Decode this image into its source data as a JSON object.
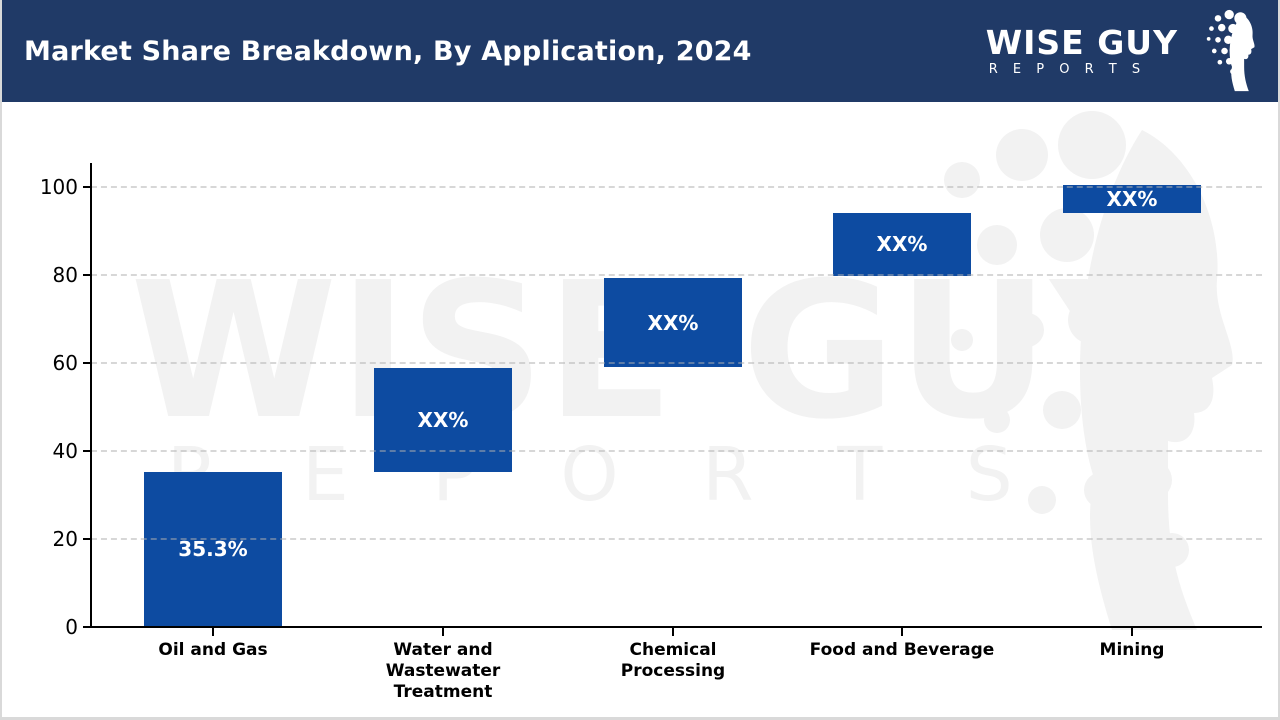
{
  "header": {
    "title": "Market Share Breakdown, By Application, 2024",
    "logo": {
      "wordmark": "WISE GUY",
      "subtitle": "R E P O R T S"
    }
  },
  "watermark": {
    "line1": "WISE GUY",
    "line2": "R E P O R T S"
  },
  "colors": {
    "header_bg": "#203a67",
    "bar": "#0d4ba1",
    "bar_label": "#ffffff",
    "grid": "#b0b0b0",
    "axis": "#000000",
    "watermark": "#f2f2f2"
  },
  "chart_data": {
    "type": "bar",
    "subtype": "waterfall",
    "title": "Market Share Breakdown, By Application, 2024",
    "xlabel": "",
    "ylabel": "",
    "ylim": [
      0,
      105
    ],
    "yticks": [
      0,
      20,
      40,
      60,
      80,
      100
    ],
    "grid": "horizontal-dashed",
    "legend": "none",
    "categories": [
      "Oil and Gas",
      "Water and Wastewater Treatment",
      "Chemical Processing",
      "Food and Beverage",
      "Mining"
    ],
    "category_label_lines": [
      [
        "Oil and Gas"
      ],
      [
        "Water and",
        "Wastewater",
        "Treatment"
      ],
      [
        "Chemical",
        "Processing"
      ],
      [
        "Food and Beverage"
      ],
      [
        "Mining"
      ]
    ],
    "bars": [
      {
        "category": "Oil and Gas",
        "start": 0,
        "end": 35.3,
        "label": "35.3%"
      },
      {
        "category": "Water and Wastewater Treatment",
        "start": 35.3,
        "end": 58.8,
        "label": "XX%"
      },
      {
        "category": "Chemical Processing",
        "start": 59,
        "end": 79.4,
        "label": "XX%"
      },
      {
        "category": "Food and Beverage",
        "start": 79.8,
        "end": 94.1,
        "label": "XX%"
      },
      {
        "category": "Mining",
        "start": 94.1,
        "end": 100.4,
        "label": "XX%"
      }
    ]
  }
}
